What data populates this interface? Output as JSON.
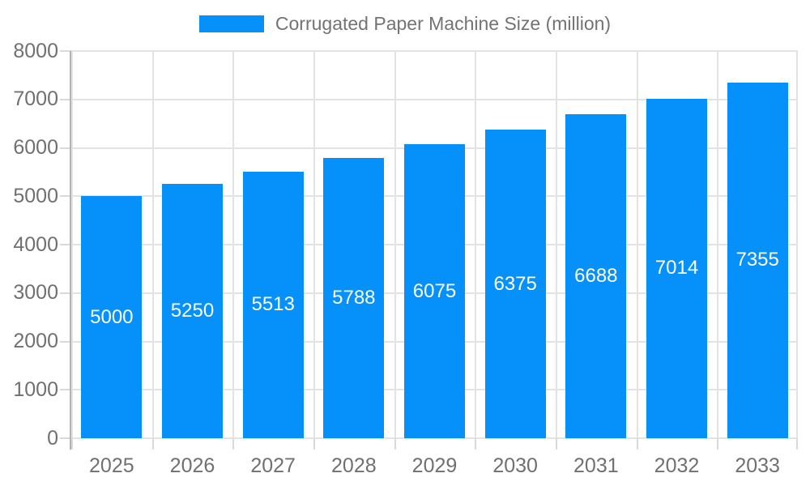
{
  "chart_data": {
    "type": "bar",
    "title": "",
    "legend": {
      "label": "Corrugated Paper Machine Size (million)",
      "position": "top"
    },
    "categories": [
      "2025",
      "2026",
      "2027",
      "2028",
      "2029",
      "2030",
      "2031",
      "2032",
      "2033"
    ],
    "series": [
      {
        "name": "Corrugated Paper Machine Size (million)",
        "values": [
          5000,
          5250,
          5513,
          5788,
          6075,
          6375,
          6688,
          7014,
          7355
        ]
      }
    ],
    "value_labels": [
      "5000",
      "5250",
      "5513",
      "5788",
      "6075",
      "6375",
      "6688",
      "7014",
      "7355"
    ],
    "xlabel": "",
    "ylabel": "",
    "ylim": [
      0,
      8000
    ],
    "yticks": [
      0,
      1000,
      2000,
      3000,
      4000,
      5000,
      6000,
      7000,
      8000
    ],
    "grid": true,
    "bar_labels_inside": true,
    "colors": {
      "bar": "#0690fa",
      "gridline": "#e3e3e3",
      "axis_line": "#b3b3b3",
      "tick_mark": "#d9d9d9",
      "tick_text": "#707070",
      "legend_text": "#737373",
      "value_label_text": "#ffffff"
    }
  }
}
